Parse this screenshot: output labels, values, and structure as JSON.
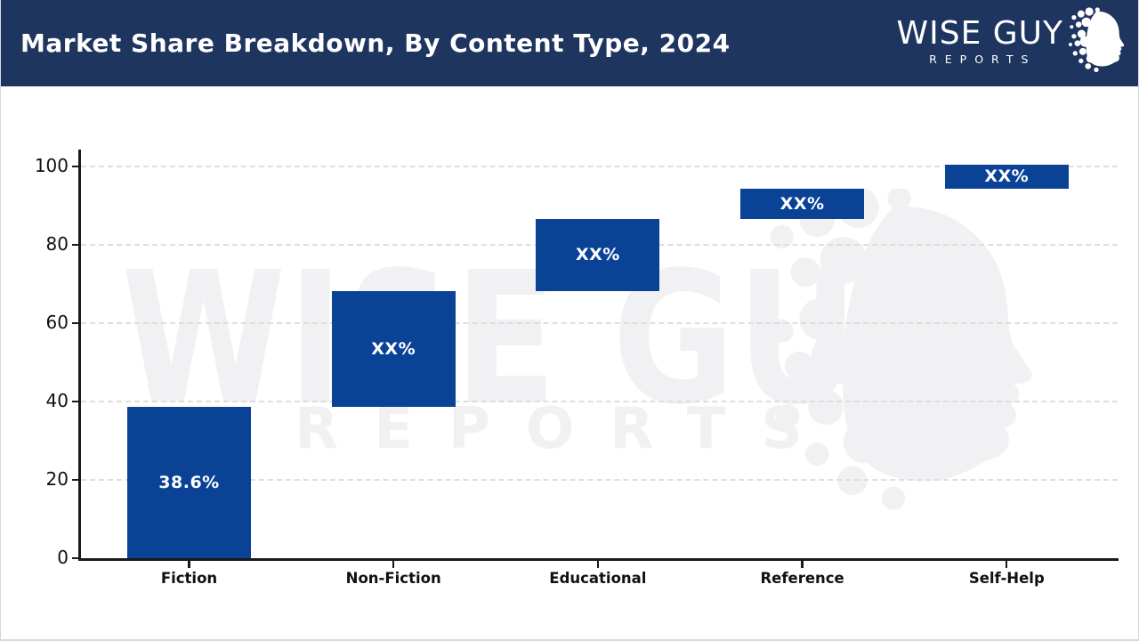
{
  "header": {
    "title": "Market Share Breakdown, By Content Type, 2024",
    "bg_color": "#1e3560",
    "logo": {
      "line1": "WISE GUY",
      "line2": "REPORTS"
    }
  },
  "watermark": {
    "line1": "WISE GUY",
    "line2": "REPORTS",
    "color": "#f1f1f4"
  },
  "chart_data": {
    "type": "bar",
    "subtype": "waterfall",
    "title": "Market Share Breakdown, By Content Type, 2024",
    "categories": [
      "Fiction",
      "Non-Fiction",
      "Educational",
      "Reference",
      "Self-Help"
    ],
    "segments": [
      {
        "category": "Fiction",
        "start": 0,
        "end": 38.6,
        "label": "38.6%"
      },
      {
        "category": "Non-Fiction",
        "start": 38.6,
        "end": 68.2,
        "label": "XX%"
      },
      {
        "category": "Educational",
        "start": 68.2,
        "end": 86.6,
        "label": "XX%"
      },
      {
        "category": "Reference",
        "start": 86.6,
        "end": 94.3,
        "label": "XX%"
      },
      {
        "category": "Self-Help",
        "start": 94.3,
        "end": 100.5,
        "label": "XX%"
      }
    ],
    "y_ticks": [
      0,
      20,
      40,
      60,
      80,
      100
    ],
    "ylim": [
      0,
      105
    ],
    "xlabel": "",
    "ylabel": "",
    "grid": "horizontal-dashed",
    "grid_color": "#dedede",
    "legend": "none",
    "bar_color": "#0a4296",
    "bar_label_color": "#ffffff"
  }
}
